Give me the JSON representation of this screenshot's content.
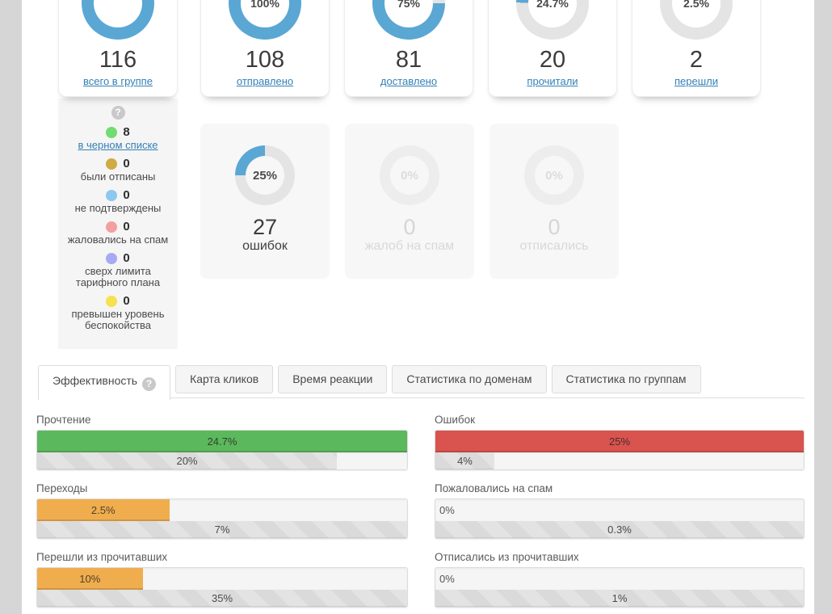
{
  "colors": {
    "blue": "#5aa7d4",
    "ring_gray": "#e4e4e4",
    "muted_ring": "#ededed",
    "green": "#5cb85c",
    "red": "#d9534f",
    "orange": "#f0ad4e",
    "link": "#3380b5"
  },
  "icons": {
    "help": "?"
  },
  "summary_cards": [
    {
      "value": "116",
      "label": "всего в группе",
      "percent": "",
      "fill": 100
    },
    {
      "value": "108",
      "label": "отправлено",
      "percent": "100%",
      "fill": 100
    },
    {
      "value": "81",
      "label": "доставлено",
      "percent": "75%",
      "fill": 75
    },
    {
      "value": "20",
      "label": "прочитали",
      "percent": "24.7%",
      "fill": 24.7
    },
    {
      "value": "2",
      "label": "перешли",
      "percent": "2.5%",
      "fill": 2.5
    }
  ],
  "legend": {
    "items": [
      {
        "color": "#71dc71",
        "count": "8",
        "label": "в черном списке",
        "link": true
      },
      {
        "color": "#cfab43",
        "count": "0",
        "label": "были отписаны",
        "link": false
      },
      {
        "color": "#8cc8ef",
        "count": "0",
        "label": "не подтверждены",
        "link": false
      },
      {
        "color": "#f2a0a0",
        "count": "0",
        "label": "жаловались на спам",
        "link": false
      },
      {
        "color": "#a7aaf2",
        "count": "0",
        "label": "сверх лимита тарифного плана",
        "link": false
      },
      {
        "color": "#f6e14e",
        "count": "0",
        "label": "превышен уровень беспокойства",
        "link": false
      }
    ]
  },
  "secondary_cards": [
    {
      "percent": "25%",
      "value": "27",
      "label": "ошибок",
      "fill": 25,
      "muted": false
    },
    {
      "percent": "0%",
      "value": "0",
      "label": "жалоб на спам",
      "fill": 0,
      "muted": true
    },
    {
      "percent": "0%",
      "value": "0",
      "label": "отписались",
      "fill": 0,
      "muted": true
    }
  ],
  "tabs": [
    {
      "label": "Эффективность",
      "active": true,
      "help": true
    },
    {
      "label": "Карта кликов",
      "active": false,
      "help": false
    },
    {
      "label": "Время реакции",
      "active": false,
      "help": false
    },
    {
      "label": "Статистика по доменам",
      "active": false,
      "help": false
    },
    {
      "label": "Статистика по группам",
      "active": false,
      "help": false
    }
  ],
  "chart_data": {
    "type": "bar",
    "note": "efficiency comparison bars: campaign value vs average value (gray striped)",
    "columns": [
      [
        {
          "title": "Прочтение",
          "main_label": "24.7%",
          "main_value": 24.7,
          "main_color": "green",
          "main_width_pct": 100,
          "avg_label": "20%",
          "avg_value": 20,
          "avg_width_pct": 81
        },
        {
          "title": "Переходы",
          "main_label": "2.5%",
          "main_value": 2.5,
          "main_color": "orange",
          "main_width_pct": 35.7,
          "avg_label": "7%",
          "avg_value": 7,
          "avg_width_pct": 100
        },
        {
          "title": "Перешли из прочитавших",
          "main_label": "10%",
          "main_value": 10,
          "main_color": "orange",
          "main_width_pct": 28.5,
          "avg_label": "35%",
          "avg_value": 35,
          "avg_width_pct": 100
        }
      ],
      [
        {
          "title": "Ошибок",
          "main_label": "25%",
          "main_value": 25,
          "main_color": "red",
          "main_width_pct": 100,
          "avg_label": "4%",
          "avg_value": 4,
          "avg_width_pct": 16
        },
        {
          "title": "Пожаловались на спам",
          "main_label": "0%",
          "main_value": 0,
          "main_color": "none",
          "main_width_pct": 0,
          "avg_label": "0.3%",
          "avg_value": 0.3,
          "avg_width_pct": 100
        },
        {
          "title": "Отписались из прочитавших",
          "main_label": "0%",
          "main_value": 0,
          "main_color": "none",
          "main_width_pct": 0,
          "avg_label": "1%",
          "avg_value": 1,
          "avg_width_pct": 100
        }
      ]
    ]
  }
}
